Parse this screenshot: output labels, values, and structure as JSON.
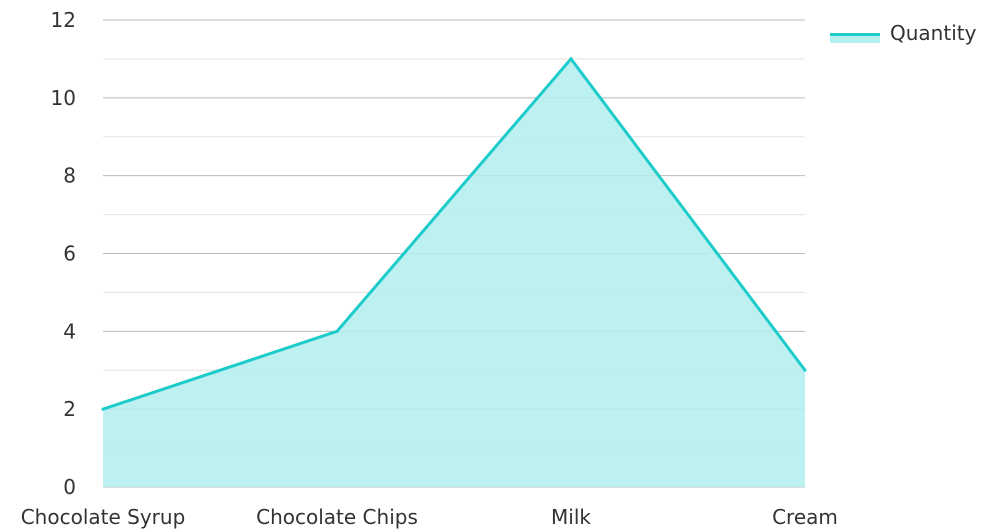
{
  "chart_data": {
    "type": "area",
    "categories": [
      "Chocolate Syrup",
      "Chocolate Chips",
      "Milk",
      "Cream"
    ],
    "series": [
      {
        "name": "Quantity",
        "values": [
          2,
          4,
          11,
          3
        ]
      }
    ],
    "ylim": [
      0,
      12
    ],
    "yticks": [
      "0",
      "2",
      "4",
      "6",
      "8",
      "10",
      "12"
    ],
    "grid": true,
    "legend_position": "top-right",
    "colors": {
      "line": "#1ecbcb",
      "fill": "#b2efee",
      "major_grid": "#bbbbbb",
      "minor_grid": "#e3e3e3",
      "text": "#333333"
    }
  }
}
